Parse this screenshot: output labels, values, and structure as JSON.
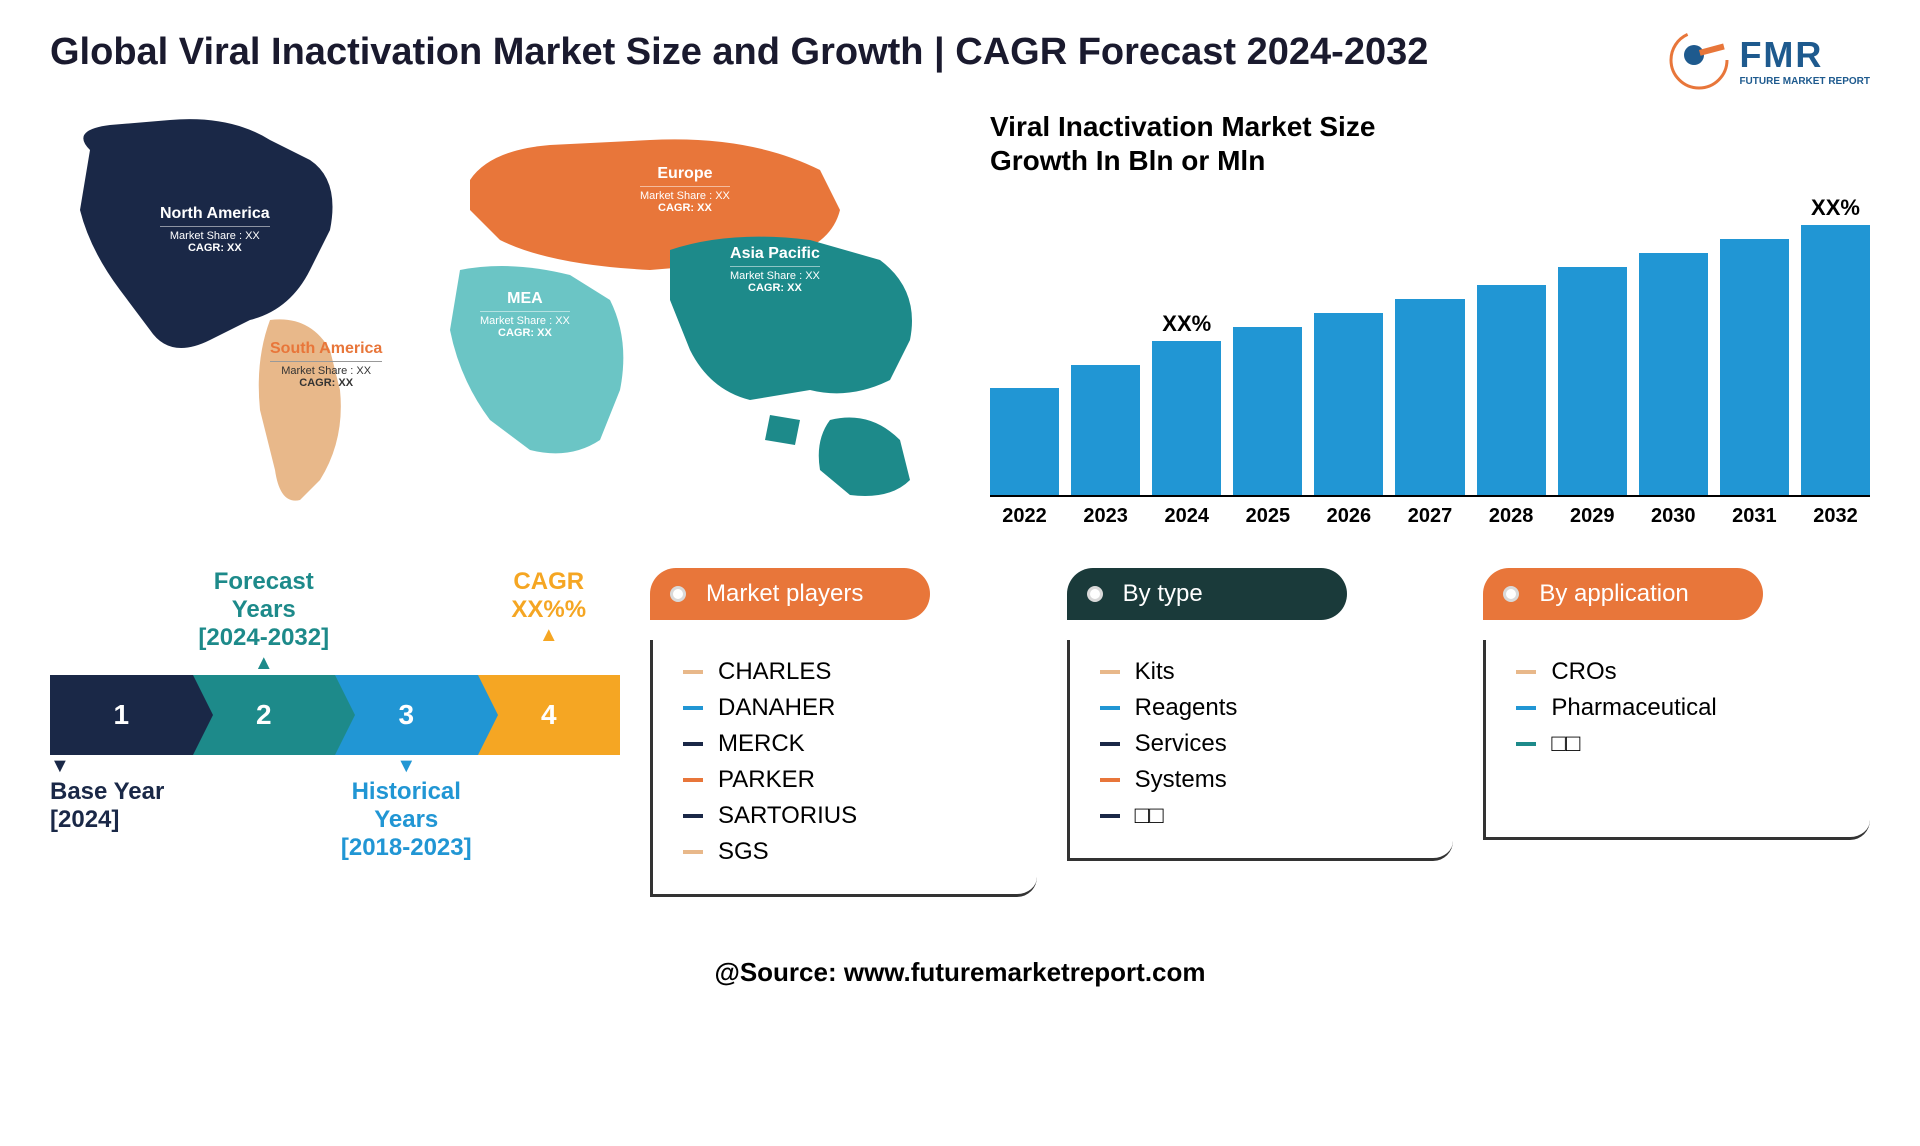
{
  "title": "Global Viral Inactivation Market Size and Growth | CAGR Forecast 2024-2032",
  "logo": {
    "fmr": "FMR",
    "sub": "FUTURE MARKET REPORT"
  },
  "colors": {
    "navy": "#1a2847",
    "orange": "#e8763a",
    "teal": "#1d8a8a",
    "lightTeal": "#6bc5c5",
    "tan": "#e8b88a",
    "blue": "#2196d4",
    "darkBlue": "#1e5a8e",
    "yellow": "#f5a623"
  },
  "regions": {
    "northAmerica": {
      "name": "North America",
      "share": "Market Share : XX",
      "cagr": "CAGR: XX",
      "color": "#1a2847"
    },
    "southAmerica": {
      "name": "South America",
      "share": "Market Share : XX",
      "cagr": "CAGR: XX",
      "color": "#e8b88a"
    },
    "europe": {
      "name": "Europe",
      "share": "Market Share : XX",
      "cagr": "CAGR: XX",
      "color": "#e8763a"
    },
    "mea": {
      "name": "MEA",
      "share": "Market Share : XX",
      "cagr": "CAGR: XX",
      "color": "#6bc5c5"
    },
    "asiaPacific": {
      "name": "Asia Pacific",
      "share": "Market Share : XX",
      "cagr": "CAGR: XX",
      "color": "#1d8a8a"
    }
  },
  "chart": {
    "title": "Viral Inactivation Market Size Growth In Bln or Mln",
    "type": "bar",
    "bar_color": "#2196d4",
    "years": [
      "2022",
      "2023",
      "2024",
      "2025",
      "2026",
      "2027",
      "2028",
      "2029",
      "2030",
      "2031",
      "2032"
    ],
    "values": [
      115,
      140,
      165,
      180,
      195,
      210,
      225,
      245,
      260,
      275,
      290
    ],
    "annotations": {
      "2": "XX%",
      "10": "XX%"
    },
    "ylim": [
      0,
      300
    ]
  },
  "timeline": {
    "forecast": {
      "label": "Forecast Years",
      "range": "[2024-2032]",
      "color": "#1d8a8a"
    },
    "cagr": {
      "label": "CAGR",
      "value": "XX%%",
      "color": "#f5a623"
    },
    "base": {
      "label": "Base Year",
      "range": "[2024]",
      "color": "#1a2847"
    },
    "historical": {
      "label": "Historical Years",
      "range": "[2018-2023]",
      "color": "#2196d4"
    },
    "segments": [
      {
        "num": "1",
        "color": "#1a2847"
      },
      {
        "num": "2",
        "color": "#1d8a8a"
      },
      {
        "num": "3",
        "color": "#2196d4"
      },
      {
        "num": "4",
        "color": "#f5a623"
      }
    ]
  },
  "panels": {
    "players": {
      "title": "Market players",
      "headerColor": "#e8763a",
      "items": [
        {
          "text": "CHARLES",
          "dash": "#e8b88a"
        },
        {
          "text": "DANAHER",
          "dash": "#2196d4"
        },
        {
          "text": "MERCK",
          "dash": "#1a2847"
        },
        {
          "text": "PARKER",
          "dash": "#e8763a"
        },
        {
          "text": "SARTORIUS",
          "dash": "#1a2847"
        },
        {
          "text": "SGS",
          "dash": "#e8b88a"
        }
      ]
    },
    "type": {
      "title": "By type",
      "headerColor": "#1a3a3a",
      "items": [
        {
          "text": "Kits",
          "dash": "#e8b88a"
        },
        {
          "text": "Reagents",
          "dash": "#2196d4"
        },
        {
          "text": "Services",
          "dash": "#1a2847"
        },
        {
          "text": "Systems",
          "dash": "#e8763a"
        },
        {
          "text": "□□",
          "dash": "#1a2847"
        }
      ]
    },
    "application": {
      "title": "By application",
      "headerColor": "#e8763a",
      "items": [
        {
          "text": "CROs",
          "dash": "#e8b88a"
        },
        {
          "text": "Pharmaceutical",
          "dash": "#2196d4"
        },
        {
          "text": "□□",
          "dash": "#1d8a8a"
        }
      ]
    }
  },
  "source": "@Source: www.futuremarketreport.com"
}
